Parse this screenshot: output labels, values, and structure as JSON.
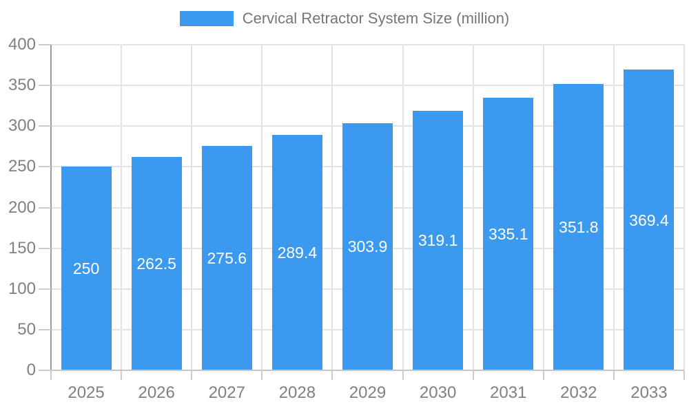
{
  "legend": {
    "label": "Cervical Retractor System Size (million)"
  },
  "chart_data": {
    "type": "bar",
    "title": "Cervical Retractor System Size (million)",
    "categories": [
      "2025",
      "2026",
      "2027",
      "2028",
      "2029",
      "2030",
      "2031",
      "2032",
      "2033"
    ],
    "values": [
      250,
      262.5,
      275.6,
      289.4,
      303.9,
      319.1,
      335.1,
      351.8,
      369.4
    ],
    "data_labels": [
      "250",
      "262.5",
      "275.6",
      "289.4",
      "303.9",
      "319.1",
      "335.1",
      "351.8",
      "369.4"
    ],
    "xlabel": "",
    "ylabel": "",
    "ylim": [
      0,
      400
    ],
    "yticks": [
      0,
      50,
      100,
      150,
      200,
      250,
      300,
      350,
      400
    ],
    "grid": true,
    "legend_position": "top-center",
    "colors": {
      "bar": "#3B9AF0",
      "grid_line": "#E3E3E3",
      "axis_line": "#999999",
      "tick_mark": "#CCCCCC",
      "axis_label": "#808080",
      "legend_text": "#757575",
      "data_label": "#FFFFFF",
      "background": "#FFFFFF"
    }
  }
}
